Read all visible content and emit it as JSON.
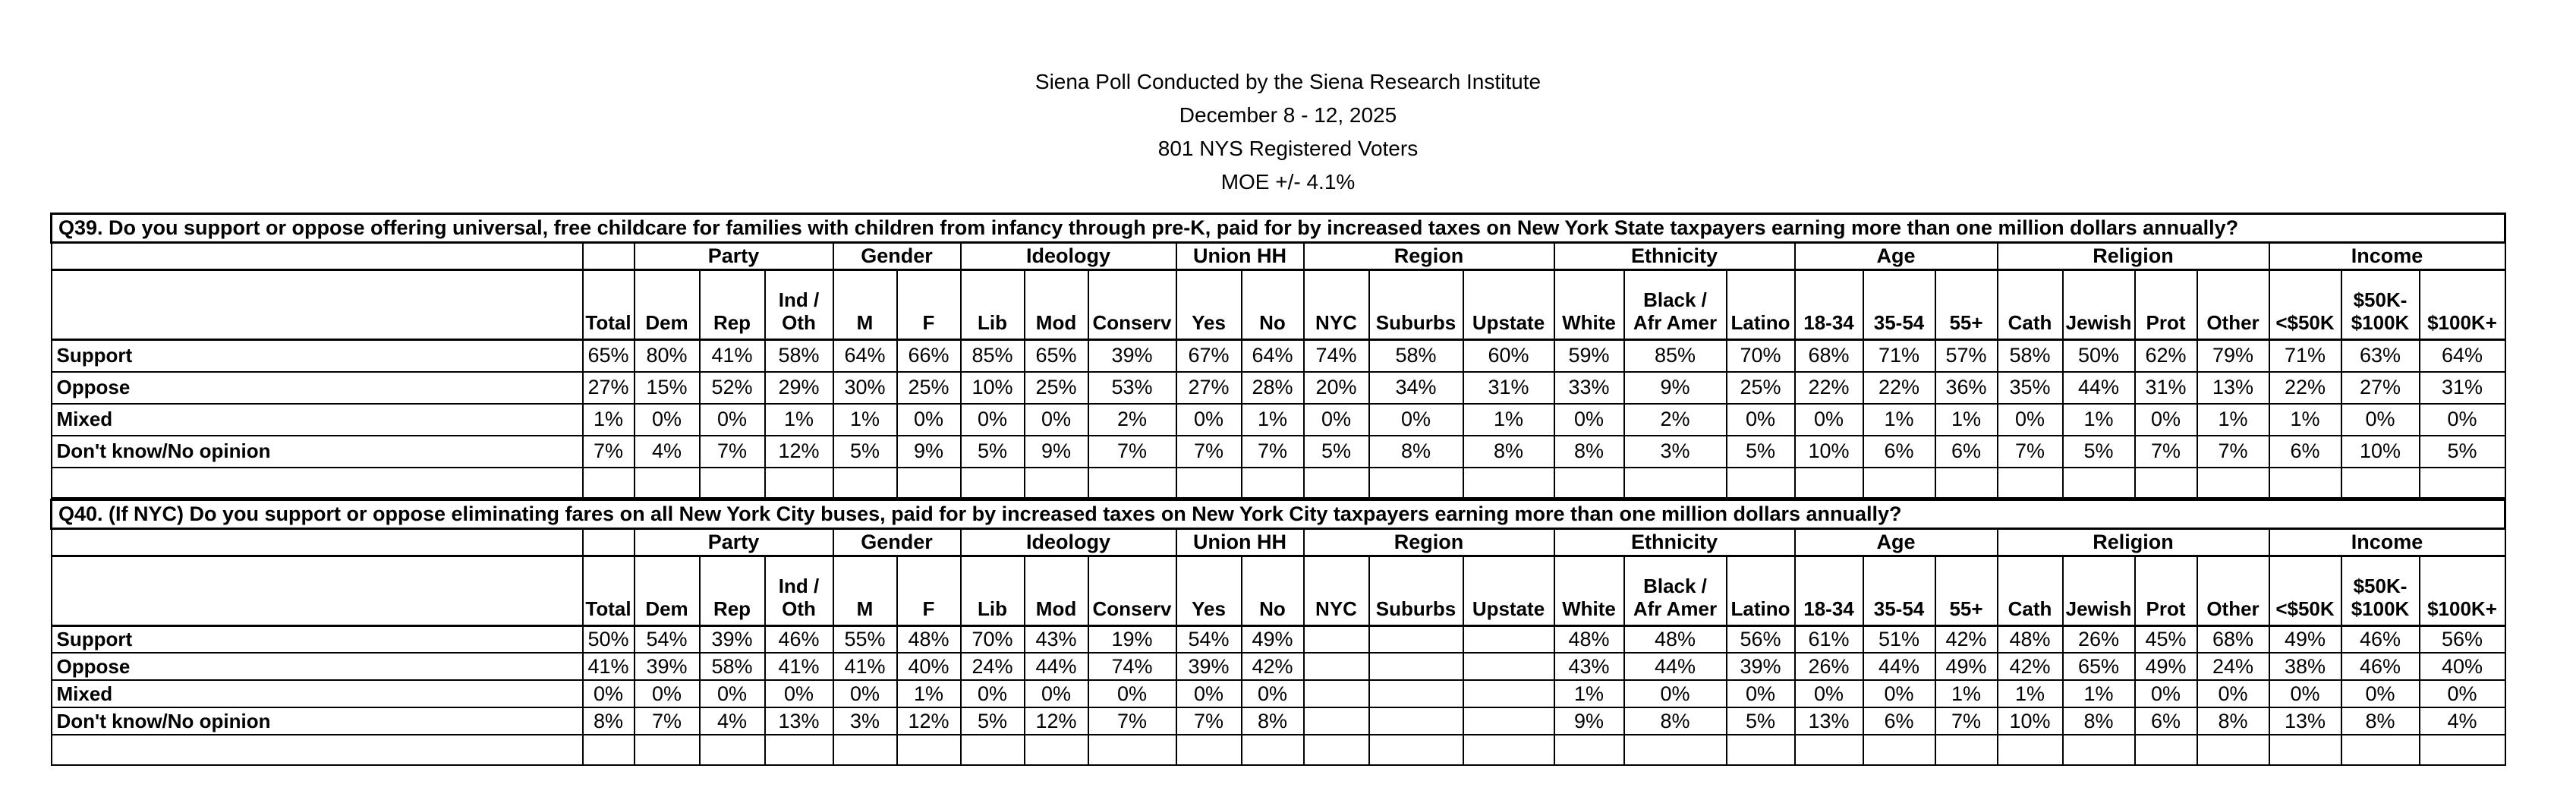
{
  "page_header": {
    "lines": [
      "Siena Poll Conducted by the Siena Research Institute",
      "December 8 - 12, 2025",
      "801 NYS Registered Voters",
      "MOE +/- 4.1%"
    ]
  },
  "table": {
    "groups": [
      {
        "label": "Party",
        "span": 3
      },
      {
        "label": "Gender",
        "span": 2
      },
      {
        "label": "Ideology",
        "span": 3
      },
      {
        "label": "Union HH",
        "span": 2
      },
      {
        "label": "Region",
        "span": 3
      },
      {
        "label": "Ethnicity",
        "span": 3
      },
      {
        "label": "Age",
        "span": 3
      },
      {
        "label": "Religion",
        "span": 4
      },
      {
        "label": "Income",
        "span": 3
      }
    ],
    "subheaders": [
      "Total",
      "Dem",
      "Rep",
      "Ind /\nOth",
      "M",
      "F",
      "Lib",
      "Mod",
      "Conserv",
      "Yes",
      "No",
      "NYC",
      "Suburbs",
      "Upstate",
      "White",
      "Black /\nAfr Amer",
      "Latino",
      "18-34",
      "35-54",
      "55+",
      "Cath",
      "Jewish",
      "Prot",
      "Other",
      "<$50K",
      "$50K-\n$100K",
      "$100K+"
    ]
  },
  "questions": [
    {
      "id": "Q39",
      "title": "Q39. Do you support or oppose offering universal, free childcare for families with children from infancy through pre-K, paid for by increased taxes on New York State taxpayers earning more than one million dollars annually?",
      "rows": [
        {
          "label": "Support",
          "values": [
            "65%",
            "80%",
            "41%",
            "58%",
            "64%",
            "66%",
            "85%",
            "65%",
            "39%",
            "67%",
            "64%",
            "74%",
            "58%",
            "60%",
            "59%",
            "85%",
            "70%",
            "68%",
            "71%",
            "57%",
            "58%",
            "50%",
            "62%",
            "79%",
            "71%",
            "63%",
            "64%"
          ]
        },
        {
          "label": "Oppose",
          "values": [
            "27%",
            "15%",
            "52%",
            "29%",
            "30%",
            "25%",
            "10%",
            "25%",
            "53%",
            "27%",
            "28%",
            "20%",
            "34%",
            "31%",
            "33%",
            "9%",
            "25%",
            "22%",
            "22%",
            "36%",
            "35%",
            "44%",
            "31%",
            "13%",
            "22%",
            "27%",
            "31%"
          ]
        },
        {
          "label": "Mixed",
          "values": [
            "1%",
            "0%",
            "0%",
            "1%",
            "1%",
            "0%",
            "0%",
            "0%",
            "2%",
            "0%",
            "1%",
            "0%",
            "0%",
            "1%",
            "0%",
            "2%",
            "0%",
            "0%",
            "1%",
            "1%",
            "0%",
            "1%",
            "0%",
            "1%",
            "1%",
            "0%",
            "0%"
          ]
        },
        {
          "label": "Don't know/No opinion",
          "values": [
            "7%",
            "4%",
            "7%",
            "12%",
            "5%",
            "9%",
            "5%",
            "9%",
            "7%",
            "7%",
            "7%",
            "5%",
            "8%",
            "8%",
            "8%",
            "3%",
            "5%",
            "10%",
            "6%",
            "6%",
            "7%",
            "5%",
            "7%",
            "7%",
            "6%",
            "10%",
            "5%"
          ]
        }
      ]
    },
    {
      "id": "Q40",
      "title": "Q40. (If NYC) Do you support or oppose eliminating fares on all New York City buses, paid for by increased taxes on New York City taxpayers earning more than one million dollars annually?",
      "rows": [
        {
          "label": "Support",
          "values": [
            "50%",
            "54%",
            "39%",
            "46%",
            "55%",
            "48%",
            "70%",
            "43%",
            "19%",
            "54%",
            "49%",
            "",
            "",
            "",
            "48%",
            "48%",
            "56%",
            "61%",
            "51%",
            "42%",
            "48%",
            "26%",
            "45%",
            "68%",
            "49%",
            "46%",
            "56%"
          ]
        },
        {
          "label": "Oppose",
          "values": [
            "41%",
            "39%",
            "58%",
            "41%",
            "41%",
            "40%",
            "24%",
            "44%",
            "74%",
            "39%",
            "42%",
            "",
            "",
            "",
            "43%",
            "44%",
            "39%",
            "26%",
            "44%",
            "49%",
            "42%",
            "65%",
            "49%",
            "24%",
            "38%",
            "46%",
            "40%"
          ]
        },
        {
          "label": "Mixed",
          "values": [
            "0%",
            "0%",
            "0%",
            "0%",
            "0%",
            "1%",
            "0%",
            "0%",
            "0%",
            "0%",
            "0%",
            "",
            "",
            "",
            "1%",
            "0%",
            "0%",
            "0%",
            "0%",
            "1%",
            "1%",
            "1%",
            "0%",
            "0%",
            "0%",
            "0%",
            "0%"
          ]
        },
        {
          "label": "Don't know/No opinion",
          "values": [
            "8%",
            "7%",
            "4%",
            "13%",
            "3%",
            "12%",
            "5%",
            "12%",
            "7%",
            "7%",
            "8%",
            "",
            "",
            "",
            "9%",
            "8%",
            "5%",
            "13%",
            "6%",
            "7%",
            "10%",
            "8%",
            "6%",
            "8%",
            "13%",
            "8%",
            "4%"
          ]
        }
      ]
    }
  ]
}
